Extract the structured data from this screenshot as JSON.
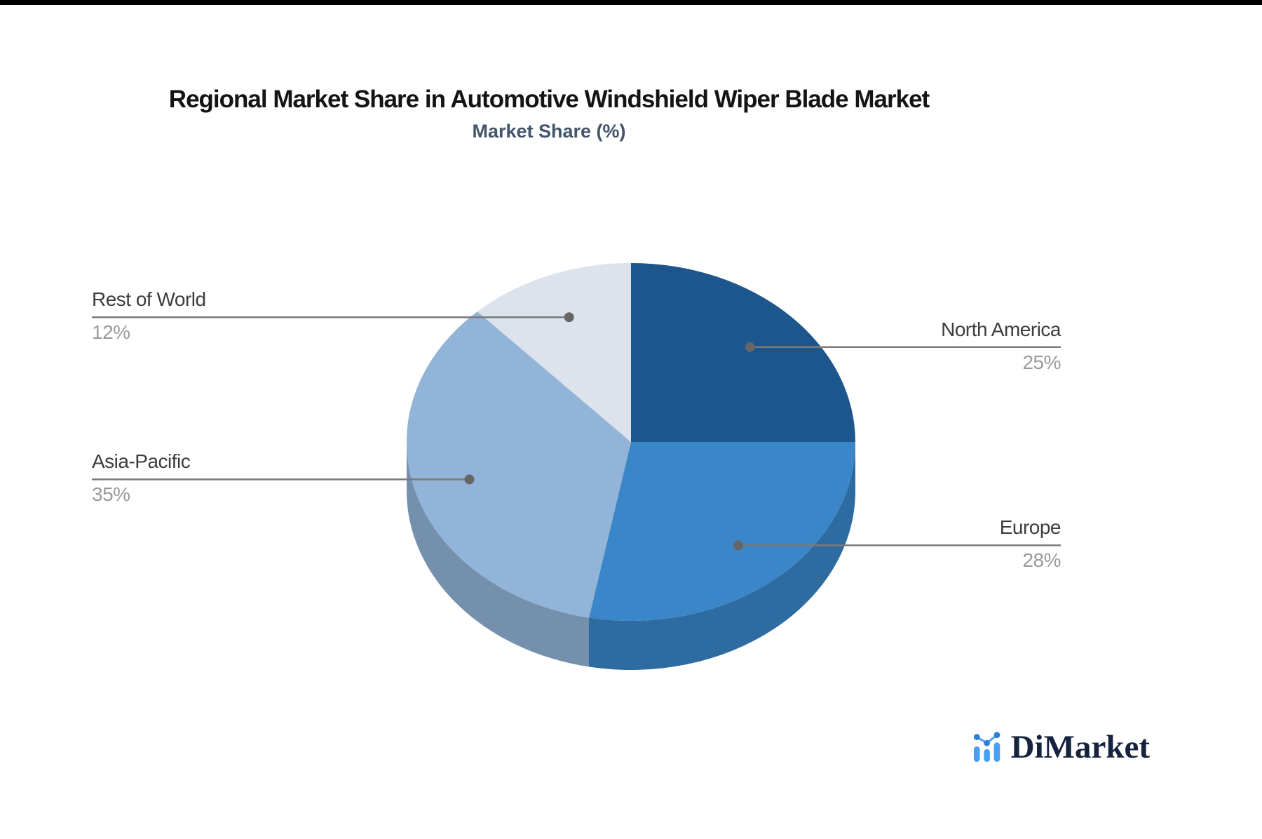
{
  "title": "Regional Market Share in Automotive Windshield Wiper Blade Market",
  "subtitle": "Market Share (%)",
  "brand": {
    "name": "DiMarket",
    "icon": "bar-line-chart-icon"
  },
  "colors": {
    "title_text": "#141414",
    "subtitle_text": "#44546a",
    "label_text": "#3d3d3d",
    "percent_text": "#9a9a9a",
    "leader_line": "#7a7a7a",
    "leader_dot": "#666666",
    "logo_blue": "#47a0f4",
    "logo_dot_blue": "#2e7fd9",
    "logo_text": "#15233f",
    "background": "#ffffff"
  },
  "chart_data": {
    "type": "pie",
    "style": "3d",
    "title": "Regional Market Share in Automotive Windshield Wiper Blade Market",
    "subtitle": "Market Share (%)",
    "unit": "%",
    "start_angle": "12-o-clock, clockwise",
    "legend_position": "callout-labels",
    "slices": [
      {
        "label": "North America",
        "value": 25,
        "pct_label": "25%",
        "color": "#1c568c"
      },
      {
        "label": "Europe",
        "value": 28,
        "pct_label": "28%",
        "color": "#3a86c8"
      },
      {
        "label": "Asia-Pacific",
        "value": 35,
        "pct_label": "35%",
        "color": "#92b4d8"
      },
      {
        "label": "Rest of World",
        "value": 12,
        "pct_label": "12%",
        "color": "#dde3ed"
      }
    ]
  }
}
